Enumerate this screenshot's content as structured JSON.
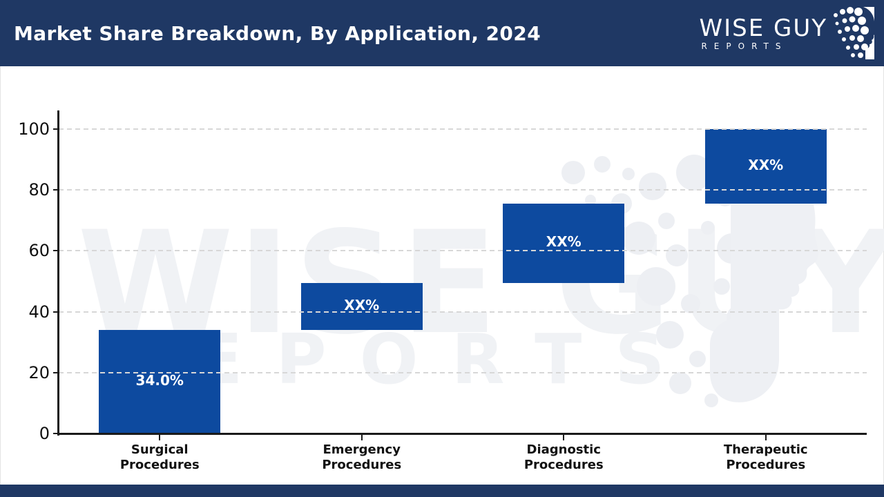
{
  "header": {
    "title": "Market Share Breakdown, By Application, 2024",
    "bg_color": "#1f3864",
    "logo": {
      "wordmark": "WISE GUY",
      "subtext": "REPORTS"
    }
  },
  "watermark": {
    "line1": "WISE GUY",
    "line2": "REPORTS"
  },
  "chart_data": {
    "type": "bar",
    "subtype": "waterfall",
    "title": "Market Share Breakdown, By Application, 2024",
    "categories": [
      "Surgical Procedures",
      "Emergency Procedures",
      "Diagnostic Procedures",
      "Therapeutic Procedures"
    ],
    "category_lines": [
      [
        "Surgical",
        "Procedures"
      ],
      [
        "Emergency",
        "Procedures"
      ],
      [
        "Diagnostic",
        "Procedures"
      ],
      [
        "Therapeutic",
        "Procedures"
      ]
    ],
    "bars": [
      {
        "category": "Surgical Procedures",
        "start": 0,
        "end": 34,
        "label": "34.0%"
      },
      {
        "category": "Emergency Procedures",
        "start": 34,
        "end": 49.5,
        "label": "XX%"
      },
      {
        "category": "Diagnostic Procedures",
        "start": 49.5,
        "end": 75.5,
        "label": "XX%"
      },
      {
        "category": "Therapeutic Procedures",
        "start": 75.5,
        "end": 100,
        "label": "XX%"
      }
    ],
    "ylim": [
      0,
      100
    ],
    "yticks": [
      0,
      20,
      40,
      60,
      80,
      100
    ],
    "xlabel": "",
    "ylabel": "",
    "grid": "horizontal-dashed",
    "gridline_color": "#d7d7d7",
    "bar_color": "#0d4a9f",
    "bar_label_color": "#ffffff",
    "axis_color": "#1a1a1a",
    "legend": "none"
  },
  "footer": {
    "bg_color": "#1f3864"
  }
}
